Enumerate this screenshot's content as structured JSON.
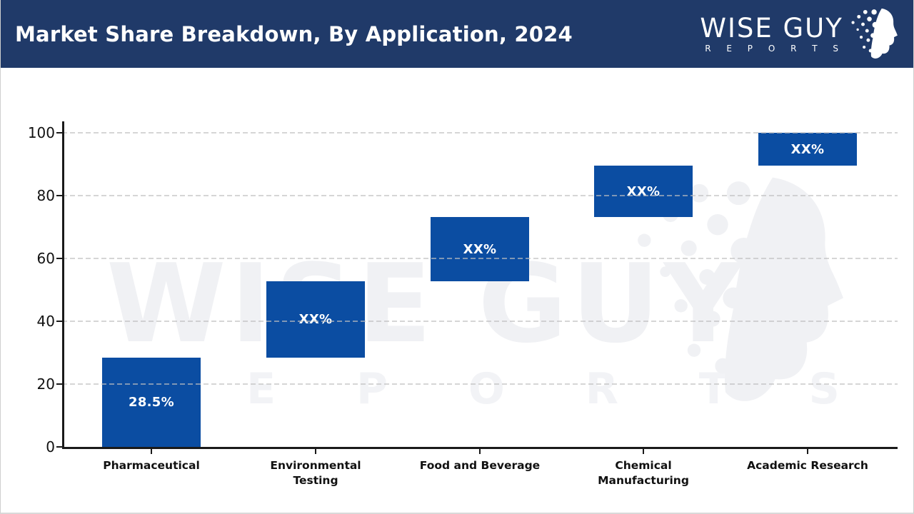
{
  "header": {
    "title": "Market Share Breakdown, By Application, 2024",
    "logo_line1": "WISE GUY",
    "logo_line2": "R E P O R T S"
  },
  "watermark": {
    "line1": "WISE GUY",
    "line2": "R E P O R T S"
  },
  "colors": {
    "header_bg": "#203a69",
    "bar": "#0b4da2",
    "bar_label": "#ffffff",
    "axis": "#1a1a1a",
    "grid": "#bfbfbf",
    "watermark": "#f0f1f4"
  },
  "chart_data": {
    "type": "bar",
    "subtype": "waterfall",
    "title": "Market Share Breakdown, By Application, 2024",
    "categories": [
      "Pharmaceutical",
      "Environmental Testing",
      "Food and Beverage",
      "Chemical Manufacturing",
      "Academic Research"
    ],
    "category_lines": [
      [
        "Pharmaceutical"
      ],
      [
        "Environmental",
        "Testing"
      ],
      [
        "Food and Beverage"
      ],
      [
        "Chemical",
        "Manufacturing"
      ],
      [
        "Academic Research"
      ]
    ],
    "series": [
      {
        "name": "Market Share",
        "segments": [
          {
            "category": "Pharmaceutical",
            "start": 0,
            "end": 28.5,
            "label": "28.5%"
          },
          {
            "category": "Environmental Testing",
            "start": 28.5,
            "end": 52.7,
            "label": "XX%"
          },
          {
            "category": "Food and Beverage",
            "start": 52.7,
            "end": 73.2,
            "label": "XX%"
          },
          {
            "category": "Chemical Manufacturing",
            "start": 73.2,
            "end": 89.5,
            "label": "XX%"
          },
          {
            "category": "Academic Research",
            "start": 89.5,
            "end": 100,
            "label": "XX%"
          }
        ]
      }
    ],
    "xlabel": "",
    "ylabel": "",
    "ylim": [
      0,
      100
    ],
    "yticks": [
      0,
      20,
      40,
      60,
      80,
      100
    ],
    "grid": "horizontal-dashed-over-bars",
    "legend": "none"
  }
}
